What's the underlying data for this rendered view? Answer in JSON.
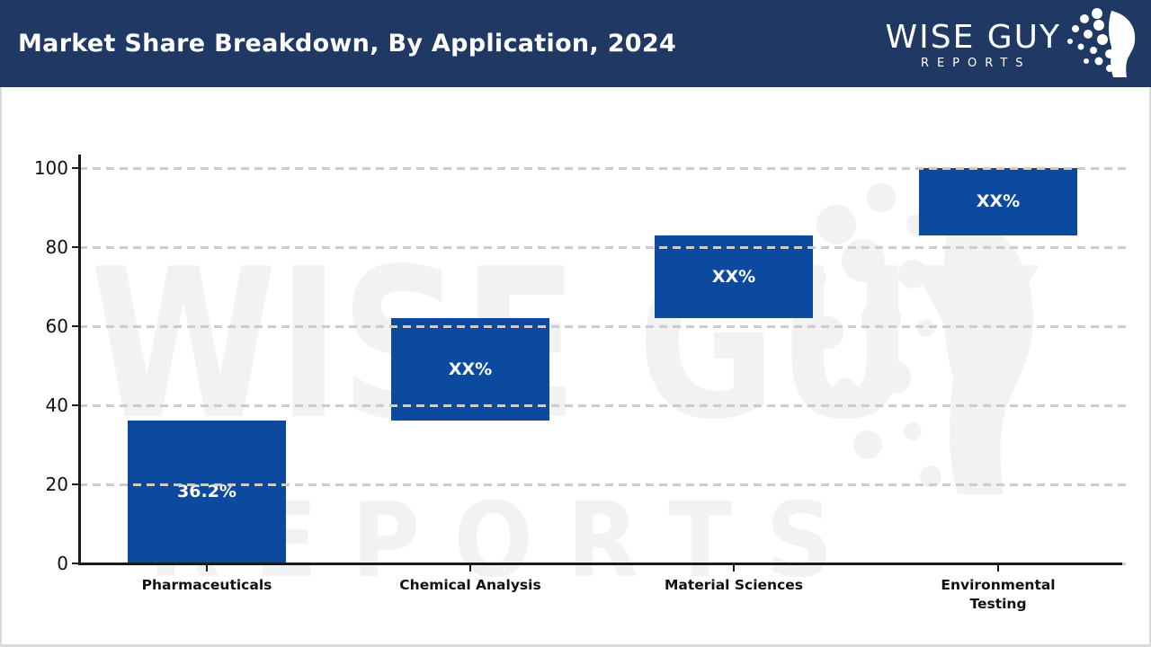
{
  "header": {
    "title": "Market Share Breakdown, By Application, 2024",
    "logo": {
      "name": "WISE GUY",
      "sub": "REPORTS"
    }
  },
  "watermark": {
    "name": "WISE GUY",
    "sub": "REPORTS"
  },
  "chart_data": {
    "type": "bar",
    "variant": "waterfall",
    "title": "Market Share Breakdown, By Application, 2024",
    "categories": [
      "Pharmaceuticals",
      "Chemical Analysis",
      "Material Sciences",
      "Environmental Testing"
    ],
    "segments": [
      {
        "category": "Pharmaceuticals",
        "start": 0,
        "end": 36.2,
        "label": "36.2%"
      },
      {
        "category": "Chemical Analysis",
        "start": 36.2,
        "end": 62,
        "label": "XX%"
      },
      {
        "category": "Material Sciences",
        "start": 62,
        "end": 83,
        "label": "XX%"
      },
      {
        "category": "Environmental Testing",
        "start": 83,
        "end": 100,
        "label": "XX%"
      }
    ],
    "xlabel": "",
    "ylabel": "",
    "ylim": [
      0,
      100
    ],
    "yticks": [
      0,
      20,
      40,
      60,
      80,
      100
    ],
    "grid": "horizontal dashed, drawn over bars",
    "legend": "none",
    "bar_color": "#0b4a9f",
    "bar_label_color": "#ffffff"
  },
  "colors": {
    "header_bg": "#1f3864",
    "bar": "#0b4a9f",
    "grid_line": "#cccccc",
    "axis": "#1a1a1a",
    "watermark": "#f2f2f2",
    "frame_border": "#d9d9d9"
  }
}
